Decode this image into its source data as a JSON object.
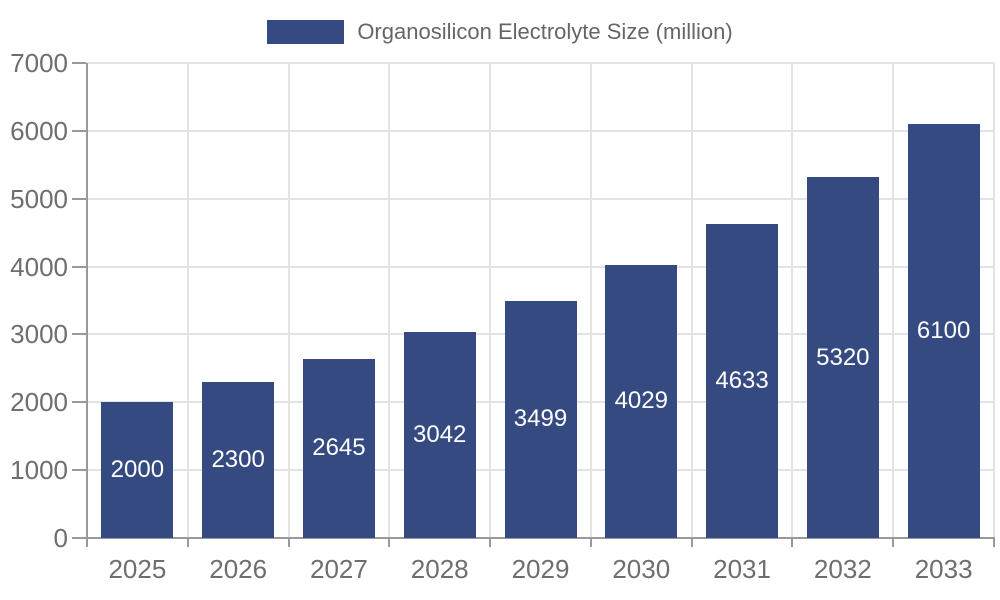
{
  "chart_data": {
    "type": "bar",
    "title": "Organosilicon Electrolyte Size (million)",
    "categories": [
      "2025",
      "2026",
      "2027",
      "2028",
      "2029",
      "2030",
      "2031",
      "2032",
      "2033"
    ],
    "values": [
      2000,
      2300,
      2645,
      3042,
      3499,
      4029,
      4633,
      5320,
      6100
    ],
    "series_name": "Organosilicon Electrolyte Size (million)",
    "xlabel": "",
    "ylabel": "",
    "ylim": [
      0,
      7000
    ],
    "ytick_step": 1000,
    "ytick_labels": [
      "0",
      "1000",
      "2000",
      "3000",
      "4000",
      "5000",
      "6000",
      "7000"
    ],
    "grid": "on",
    "legend_position": "top-center",
    "bar_label_position": "inside-middle"
  },
  "colors": {
    "bar": "#364a82",
    "axis": "#999999",
    "grid": "#e3e3e3",
    "tick_label": "#6e6e6e",
    "legend_text": "#666666",
    "bar_label": "#ffffff",
    "background": "#ffffff"
  }
}
